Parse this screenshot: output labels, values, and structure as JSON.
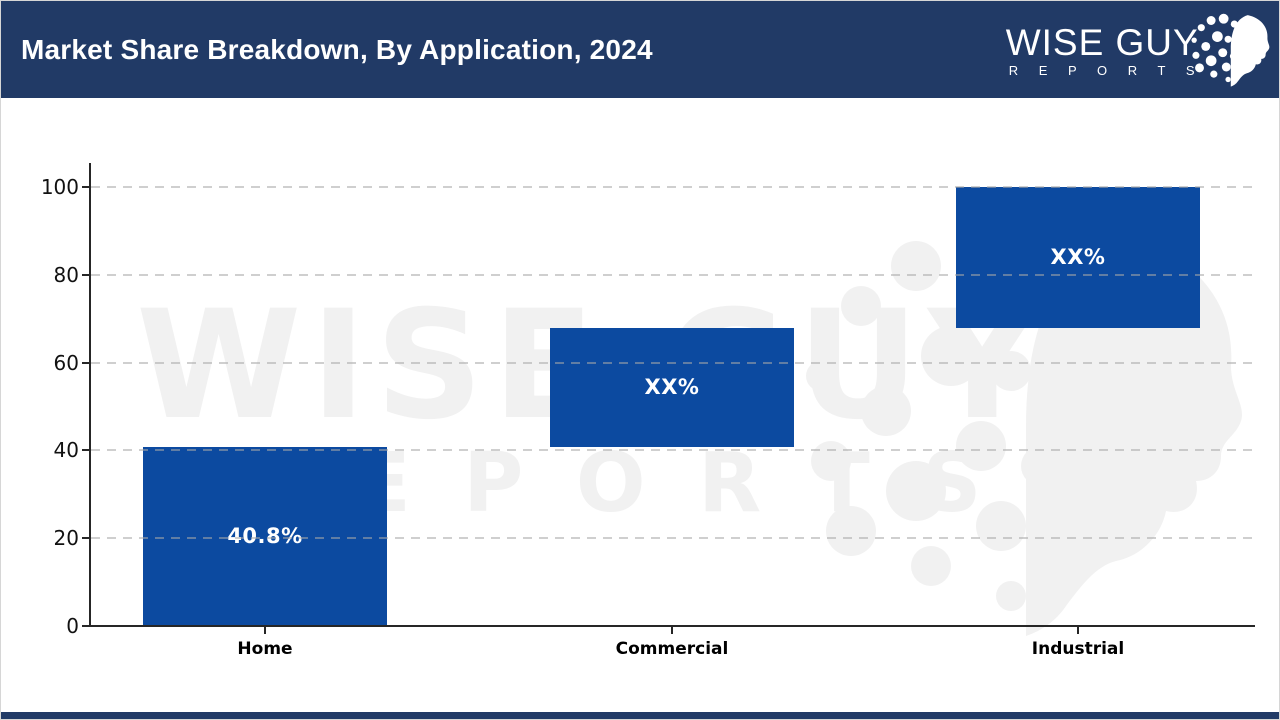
{
  "header": {
    "title": "Market Share Breakdown, By Application, 2024",
    "logo_line1": "WISE GUY",
    "logo_line2": "R E P O R T S"
  },
  "watermark": {
    "line1": "WISE GUY",
    "line2": "R  E  P  O  R  T  S"
  },
  "chart_data": {
    "type": "bar",
    "subtype": "floating-waterfall",
    "title": "Market Share Breakdown, By Application, 2024",
    "categories": [
      "Home",
      "Commercial",
      "Industrial"
    ],
    "segments": [
      {
        "category": "Home",
        "start": 0,
        "end": 40.8,
        "label": "40.8%"
      },
      {
        "category": "Commercial",
        "start": 40.8,
        "end": 67.9,
        "label": "XX%"
      },
      {
        "category": "Industrial",
        "start": 67.9,
        "end": 100,
        "label": "XX%"
      }
    ],
    "y_ticks": [
      0,
      20,
      40,
      60,
      80,
      100
    ],
    "ylim": [
      0,
      105
    ],
    "xlabel": "",
    "ylabel": "",
    "grid": "horizontal-dashed",
    "legend": "none",
    "colors": {
      "bar": "#0c4aa0",
      "bar_label": "#ffffff",
      "header_bg": "#213a66",
      "footer_bg": "#213a66",
      "axis": "#262626",
      "grid_line": "#d9d9d9",
      "watermark": "#f1f1f1"
    }
  }
}
